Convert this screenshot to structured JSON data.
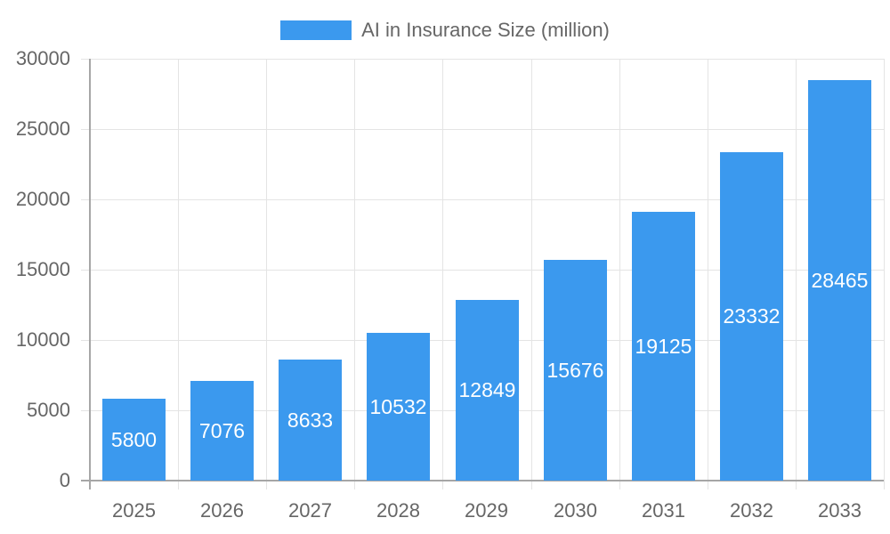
{
  "legend": {
    "label": "AI in Insurance Size (million)"
  },
  "chart_data": {
    "type": "bar",
    "title": "",
    "categories": [
      "2025",
      "2026",
      "2027",
      "2028",
      "2029",
      "2030",
      "2031",
      "2032",
      "2033"
    ],
    "values": [
      5800,
      7076,
      8633,
      10532,
      12849,
      15676,
      19125,
      23332,
      28465
    ],
    "series_name": "AI in Insurance Size (million)",
    "ylim": [
      0,
      30000
    ],
    "ytick_step": 5000,
    "yticks": [
      0,
      5000,
      10000,
      15000,
      20000,
      25000,
      30000
    ],
    "grid": true,
    "legend_position": "top",
    "value_labels": "inside-center",
    "bar_color": "#3B99EE",
    "value_label_color": "#FFFFFF",
    "axis_color": "#A6A6A6",
    "grid_color": "#E4E4E4",
    "tick_label_color": "#666666"
  }
}
